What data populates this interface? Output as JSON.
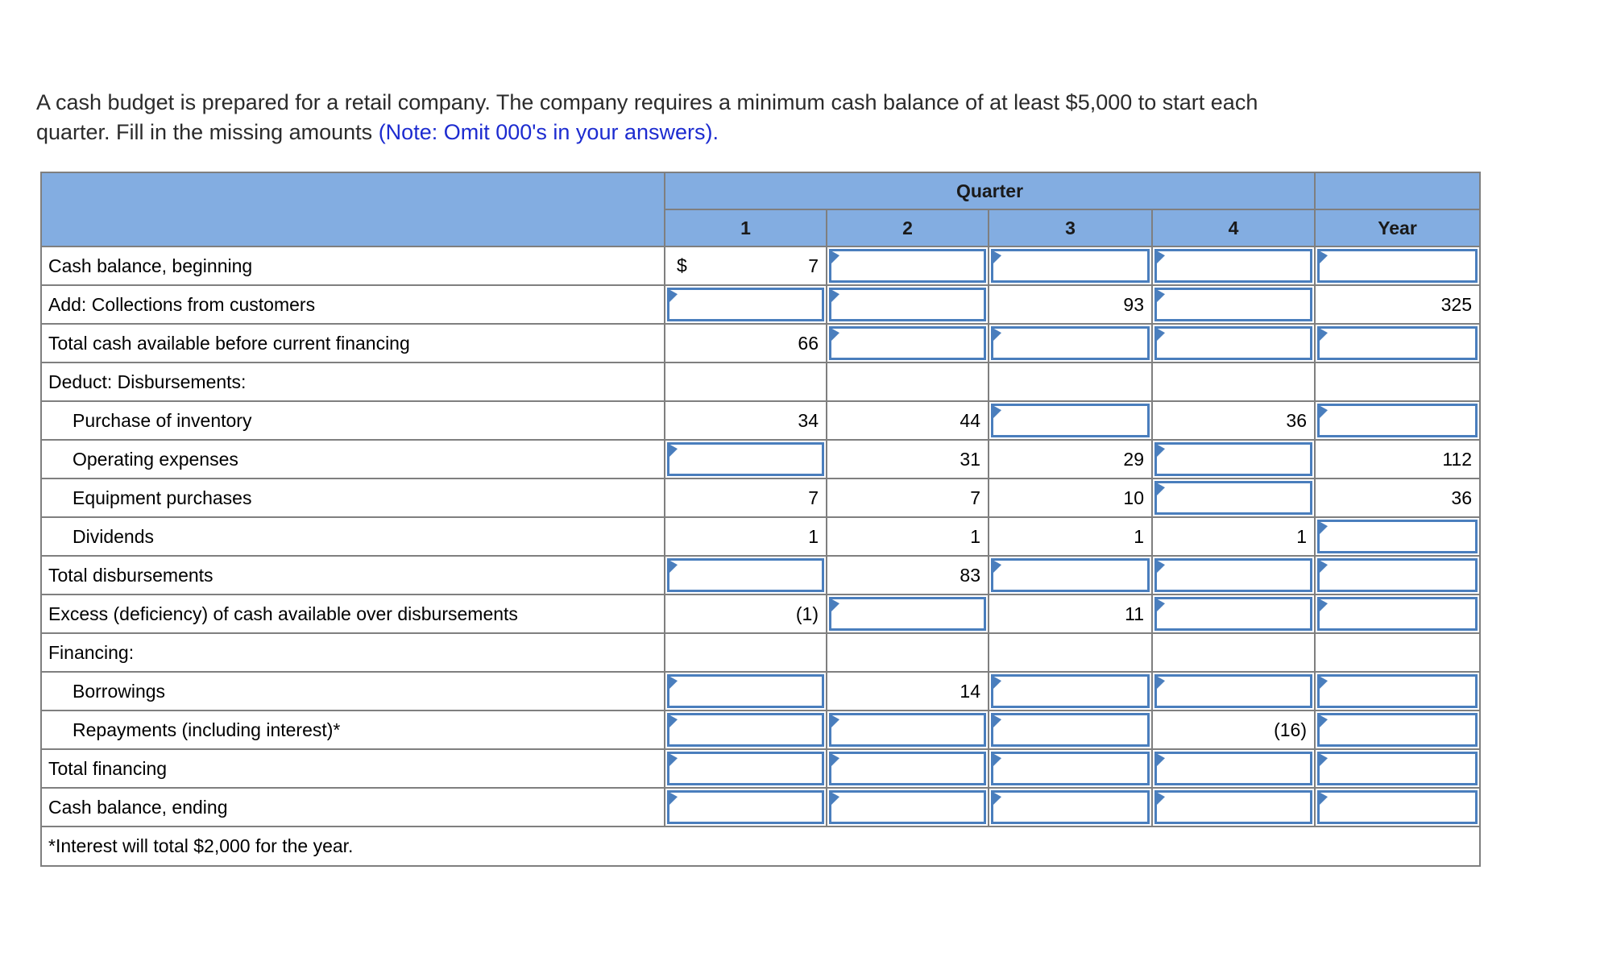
{
  "instructions": {
    "line1": "A cash budget is prepared for a retail company. The company requires a minimum cash balance of at least $5,000 to start each",
    "line2": "quarter. Fill in the missing amounts ",
    "note": "(Note: Omit 000's in your answers)."
  },
  "colors": {
    "header_bg": "#83ADE1",
    "input_border": "#4A7EBD",
    "grid_gray": "#7F7F7F",
    "accounting_rule": "#000000",
    "note_blue": "#1C2BD0"
  },
  "table": {
    "header": {
      "quarter_label": "Quarter",
      "columns": [
        "1",
        "2",
        "3",
        "4"
      ],
      "year_label": "Year"
    },
    "rows": [
      {
        "label": "Cash balance, beginning",
        "indent": false,
        "cells": [
          {
            "type": "static",
            "prefix": "$",
            "value": "7"
          },
          {
            "type": "input"
          },
          {
            "type": "input"
          },
          {
            "type": "input"
          },
          {
            "type": "input"
          }
        ]
      },
      {
        "label": "Add: Collections from customers",
        "indent": false,
        "cells": [
          {
            "type": "input"
          },
          {
            "type": "input"
          },
          {
            "type": "static",
            "value": "93"
          },
          {
            "type": "input"
          },
          {
            "type": "static",
            "value": "325"
          }
        ]
      },
      {
        "label": "Total cash available before current financing",
        "indent": false,
        "top_border": true,
        "bottom_border": true,
        "cells": [
          {
            "type": "static",
            "value": "66"
          },
          {
            "type": "input"
          },
          {
            "type": "input"
          },
          {
            "type": "input"
          },
          {
            "type": "input"
          }
        ]
      },
      {
        "label": "Deduct: Disbursements:",
        "indent": false,
        "cells": [
          {
            "type": "empty"
          },
          {
            "type": "empty"
          },
          {
            "type": "empty"
          },
          {
            "type": "empty"
          },
          {
            "type": "empty"
          }
        ]
      },
      {
        "label": "Purchase of inventory",
        "indent": true,
        "cells": [
          {
            "type": "static",
            "value": "34"
          },
          {
            "type": "static",
            "value": "44"
          },
          {
            "type": "input"
          },
          {
            "type": "static",
            "value": "36"
          },
          {
            "type": "input"
          }
        ]
      },
      {
        "label": "Operating expenses",
        "indent": true,
        "cells": [
          {
            "type": "input"
          },
          {
            "type": "static",
            "value": "31"
          },
          {
            "type": "static",
            "value": "29"
          },
          {
            "type": "input"
          },
          {
            "type": "static",
            "value": "112"
          }
        ]
      },
      {
        "label": "Equipment purchases",
        "indent": true,
        "cells": [
          {
            "type": "static",
            "value": "7"
          },
          {
            "type": "static",
            "value": "7"
          },
          {
            "type": "static",
            "value": "10"
          },
          {
            "type": "input"
          },
          {
            "type": "static",
            "value": "36"
          }
        ]
      },
      {
        "label": "Dividends",
        "indent": true,
        "cells": [
          {
            "type": "static",
            "value": "1"
          },
          {
            "type": "static",
            "value": "1"
          },
          {
            "type": "static",
            "value": "1"
          },
          {
            "type": "static",
            "value": "1"
          },
          {
            "type": "input"
          }
        ]
      },
      {
        "label": "Total disbursements",
        "indent": false,
        "top_border": true,
        "bottom_border": true,
        "cells": [
          {
            "type": "input"
          },
          {
            "type": "static",
            "value": "83"
          },
          {
            "type": "input"
          },
          {
            "type": "input"
          },
          {
            "type": "input"
          }
        ]
      },
      {
        "label": "Excess (deficiency) of cash available over disbursements",
        "indent": false,
        "bottom_border": true,
        "cells": [
          {
            "type": "static",
            "value": "(1)"
          },
          {
            "type": "input"
          },
          {
            "type": "static",
            "value": "11"
          },
          {
            "type": "input"
          },
          {
            "type": "input"
          }
        ]
      },
      {
        "label": "Financing:",
        "indent": false,
        "cells": [
          {
            "type": "empty"
          },
          {
            "type": "empty"
          },
          {
            "type": "empty"
          },
          {
            "type": "empty"
          },
          {
            "type": "empty"
          }
        ]
      },
      {
        "label": "Borrowings",
        "indent": true,
        "cells": [
          {
            "type": "input"
          },
          {
            "type": "static",
            "value": "14"
          },
          {
            "type": "input"
          },
          {
            "type": "input"
          },
          {
            "type": "input"
          }
        ]
      },
      {
        "label": "Repayments (including interest)*",
        "indent": true,
        "cells": [
          {
            "type": "input"
          },
          {
            "type": "input"
          },
          {
            "type": "input"
          },
          {
            "type": "static",
            "value": "(16)"
          },
          {
            "type": "input"
          }
        ]
      },
      {
        "label": "Total financing",
        "indent": false,
        "top_border": true,
        "bottom_border": true,
        "cells": [
          {
            "type": "input"
          },
          {
            "type": "input"
          },
          {
            "type": "input"
          },
          {
            "type": "input"
          },
          {
            "type": "input"
          }
        ]
      },
      {
        "label": "Cash balance, ending",
        "indent": false,
        "double_bottom": true,
        "cells": [
          {
            "type": "input"
          },
          {
            "type": "input"
          },
          {
            "type": "input"
          },
          {
            "type": "input"
          },
          {
            "type": "input"
          }
        ]
      }
    ],
    "footnote": "*Interest will total $2,000 for the year."
  }
}
